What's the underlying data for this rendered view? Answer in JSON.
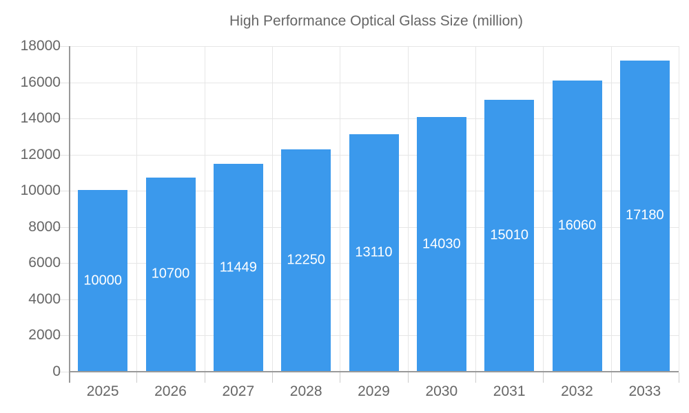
{
  "legend": {
    "label": "High Performance Optical Glass Size (million)"
  },
  "chart_data": {
    "type": "bar",
    "title": "High Performance Optical Glass Size (million)",
    "categories": [
      "2025",
      "2026",
      "2027",
      "2028",
      "2029",
      "2030",
      "2031",
      "2032",
      "2033"
    ],
    "values": [
      10000,
      10700,
      11449,
      12250,
      13110,
      14030,
      15010,
      16060,
      17180
    ],
    "series": [
      {
        "name": "High Performance Optical Glass Size (million)",
        "values": [
          10000,
          10700,
          11449,
          12250,
          13110,
          14030,
          15010,
          16060,
          17180
        ]
      }
    ],
    "xlabel": "",
    "ylabel": "",
    "ylim": [
      0,
      18000
    ],
    "ytick_step": 2000,
    "ytick_labels": [
      "0",
      "2000",
      "4000",
      "6000",
      "8000",
      "10000",
      "12000",
      "14000",
      "16000",
      "18000"
    ],
    "grid": true,
    "legend_position": "top",
    "value_labels": "inside-center",
    "colors": {
      "bar": "#3b99ec",
      "value_label": "#ffffff",
      "axis_label": "#666666",
      "legend_label": "#666666",
      "gridline": "#e6e6e6",
      "axis_line": "#999999",
      "background": "#ffffff"
    }
  }
}
